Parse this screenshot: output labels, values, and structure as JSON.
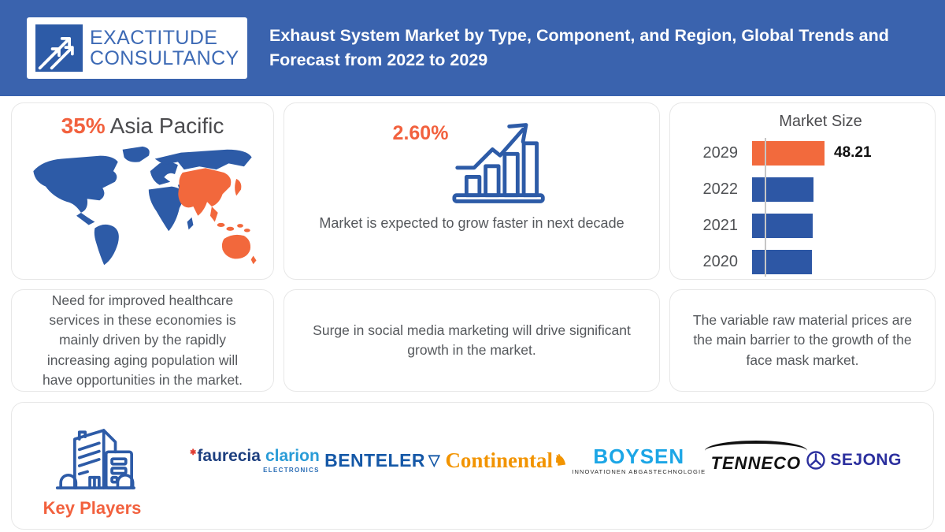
{
  "header": {
    "logo_line1": "EXACTITUDE",
    "logo_line2": "CONSULTANCY",
    "title": "Exhaust System Market by Type, Component, and Region, Global Trends and Forecast from 2022 to 2029"
  },
  "stats": {
    "region_share": {
      "value": "35%",
      "label": "Asia Pacific"
    },
    "growth": {
      "value": "2.60%",
      "caption": "Market is expected to grow faster in next decade"
    }
  },
  "chart_data": {
    "type": "bar",
    "orientation": "horizontal",
    "title": "Market Size",
    "categories": [
      "2029",
      "2022",
      "2021",
      "2020"
    ],
    "values": [
      48.21,
      40.8,
      40.3,
      39.9
    ],
    "value_labels": [
      "48.21",
      "",
      "",
      ""
    ],
    "bar_colors": [
      "#F26A3D",
      "#2D57A5",
      "#2D57A5",
      "#2D57A5"
    ],
    "xlim": [
      0,
      48.21
    ],
    "legend": "none",
    "grid": "off"
  },
  "insights": {
    "left": "Need for improved healthcare services in these economies is mainly driven by the rapidly increasing aging population will have opportunities in the market.",
    "center": "Surge in social media marketing will drive significant growth in the market.",
    "right": "The variable raw material prices are the main barrier to the growth of the face mask market."
  },
  "key_players": {
    "label": "Key Players",
    "companies": [
      "faurecia clarion",
      "BENTELER",
      "Continental",
      "BOYSEN",
      "TENNECO",
      "SEJONG"
    ]
  },
  "logos": {
    "faurecia": {
      "part1": "faurecia",
      "part2": "clarion",
      "sub": "ELECTRONICS"
    },
    "benteler": {
      "name": "BENTELER",
      "mark": "▽"
    },
    "continental": {
      "name": "Continental"
    },
    "boysen": {
      "name": "BOYSEN",
      "sub": "INNOVATIONEN ABGASTECHNOLOGIE"
    },
    "tenneco": {
      "name": "TENNECO"
    },
    "sejong": {
      "name": "SEJONG"
    }
  },
  "colors": {
    "header_bg": "#3A63AE",
    "accent_orange": "#F2613E",
    "brand_blue": "#2D5BA7",
    "bar_blue": "#2D57A5",
    "bar_orange": "#F26A3D",
    "body_text": "#55585C"
  }
}
